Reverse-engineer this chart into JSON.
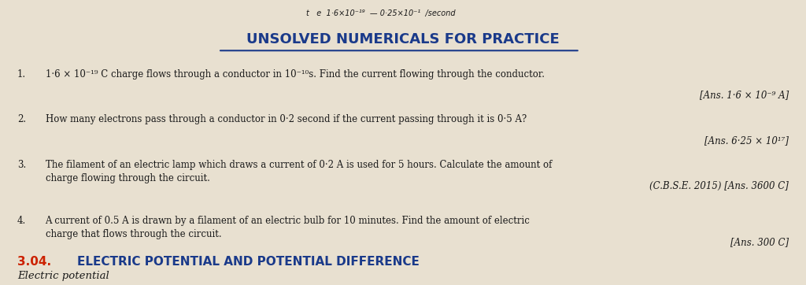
{
  "bg_color": "#e8e0d0",
  "top_text": "t   e  1·6×10⁻¹⁹  — 0·25×10⁻¹  /second",
  "header": "UNSOLVED NUMERICALS FOR PRACTICE",
  "header_color": "#1a3a8a",
  "items": [
    {
      "num": "1.",
      "text": "1·6 × 10⁻¹⁹ C charge flows through a conductor in 10⁻¹⁰s. Find the current flowing through the conductor.",
      "ans": "[Ans. 1·6 × 10⁻⁹ A]"
    },
    {
      "num": "2.",
      "text": "How many electrons pass through a conductor in 0·2 second if the current passing through it is 0·5 A?",
      "ans": "[Ans. 6·25 × 10¹⁷]"
    },
    {
      "num": "3.",
      "text": "The filament of an electric lamp which draws a current of 0·2 A is used for 5 hours. Calculate the amount of\ncharge flowing through the circuit.",
      "ans": "(C.B.S.E. 2015) [Ans. 3600 C]"
    },
    {
      "num": "4.",
      "text": "A current of 0.5 A is drawn by a filament of an electric bulb for 10 minutes. Find the amount of electric\ncharge that flows through the circuit.",
      "ans": "[Ans. 300 C]"
    }
  ],
  "section_num": "3.04.",
  "section_num_color": "#cc2200",
  "section_title": "ELECTRIC POTENTIAL AND POTENTIAL DIFFERENCE",
  "section_title_color": "#1a3a8a",
  "footer_text": "Electric potential",
  "text_color": "#1a1a1a"
}
